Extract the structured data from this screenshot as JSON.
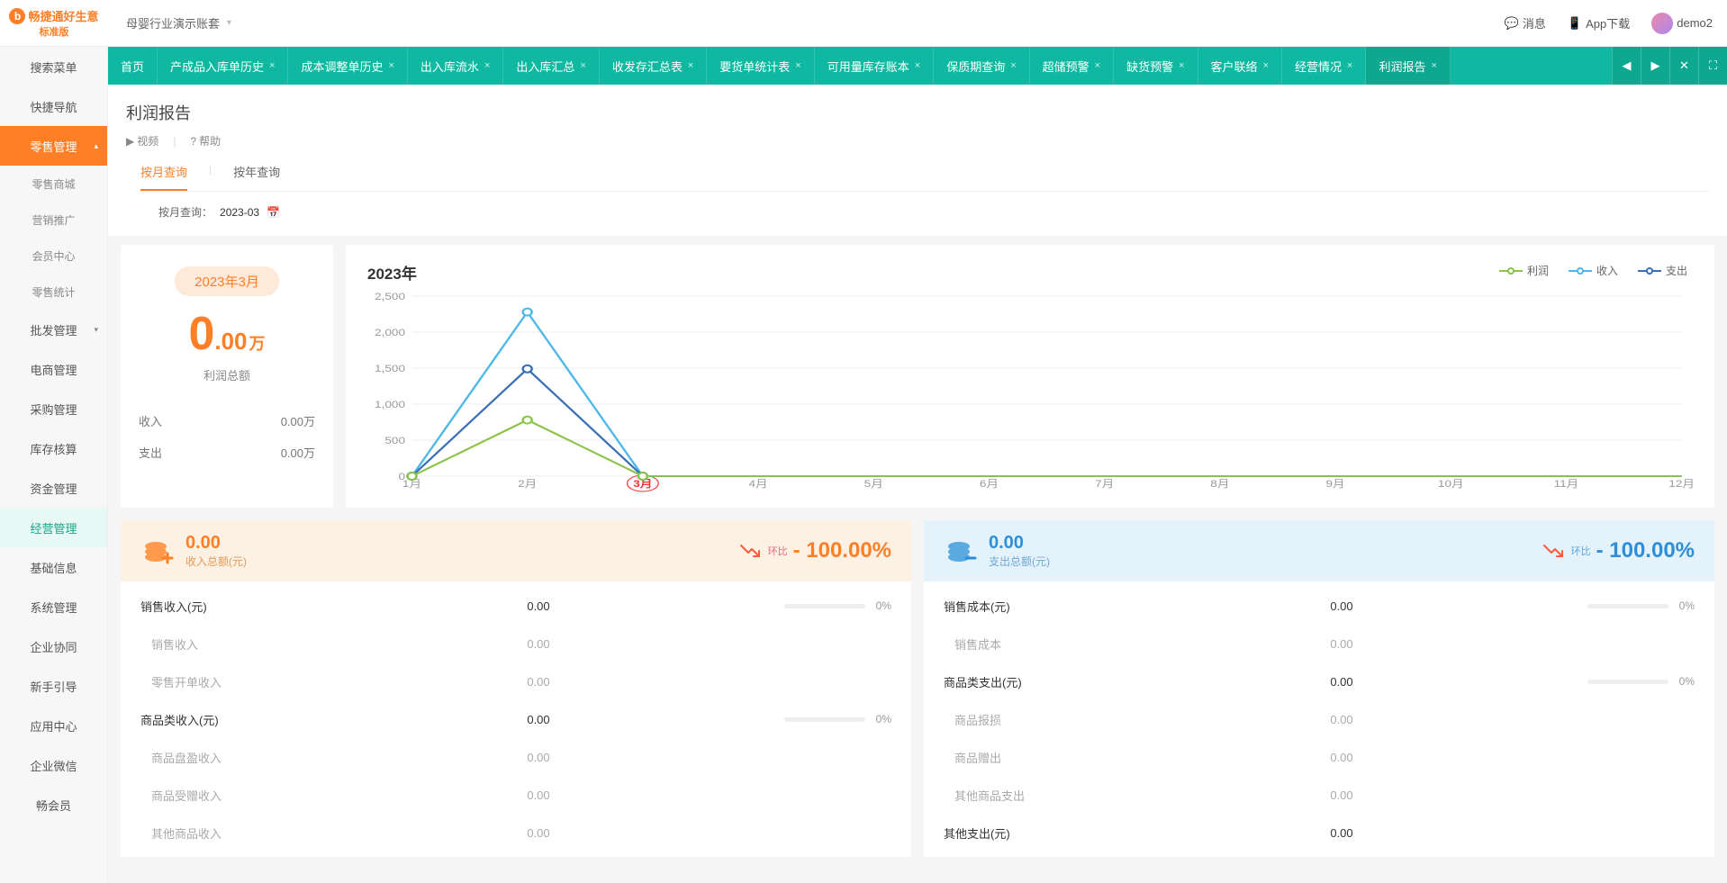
{
  "header": {
    "brand_main": "畅捷通好生意",
    "brand_sub": "标准版",
    "account": "母婴行业演示账套",
    "msg": "消息",
    "app": "App下载",
    "user": "demo2"
  },
  "sidebar": {
    "search": "搜索菜单",
    "quicknav": "快捷导航",
    "retail": "零售管理",
    "retail_sub": [
      "零售商城",
      "营销推广",
      "会员中心",
      "零售统计"
    ],
    "wholesale": "批发管理",
    "ecom": "电商管理",
    "purchase": "采购管理",
    "stock": "库存核算",
    "fund": "资金管理",
    "operate": "经营管理",
    "base": "基础信息",
    "system": "系统管理",
    "coop": "企业协同",
    "guide": "新手引导",
    "appcenter": "应用中心",
    "wechat": "企业微信",
    "member": "畅会员"
  },
  "tabs": {
    "home": "首页",
    "list": [
      "产成品入库单历史",
      "成本调整单历史",
      "出入库流水",
      "出入库汇总",
      "收发存汇总表",
      "要货单统计表",
      "可用量库存账本",
      "保质期查询",
      "超储预警",
      "缺货预警",
      "客户联络",
      "经营情况",
      "利润报告"
    ]
  },
  "page": {
    "title": "利润报告",
    "video": "视频",
    "help": "帮助",
    "subtab_month": "按月查询",
    "subtab_year": "按年查询",
    "filter_label": "按月查询：",
    "filter_value": "2023-03"
  },
  "summary": {
    "period": "2023年3月",
    "big_int": "0",
    "big_dec": ".00",
    "big_unit": "万",
    "profit_label": "利润总额",
    "income_label": "收入",
    "income_val": "0.00万",
    "expense_label": "支出",
    "expense_val": "0.00万"
  },
  "chart": {
    "title": "2023年",
    "legend_profit": "利润",
    "legend_income": "收入",
    "legend_expense": "支出",
    "color_profit": "#8bc34a",
    "color_income": "#4db8e8",
    "color_expense": "#3a6fb7",
    "y_ticks": [
      0,
      500,
      1000,
      1500,
      2000,
      2500
    ],
    "y_max": 2500,
    "x_labels": [
      "1月",
      "2月",
      "3月",
      "4月",
      "5月",
      "6月",
      "7月",
      "8月",
      "9月",
      "10月",
      "11月",
      "12月"
    ],
    "active_x": 2,
    "series": {
      "profit": [
        0,
        780,
        0,
        0,
        0,
        0,
        0,
        0,
        0,
        0,
        0,
        0
      ],
      "income": [
        0,
        2280,
        0,
        0,
        0,
        0,
        0,
        0,
        0,
        0,
        0,
        0
      ],
      "expense": [
        0,
        1490,
        0,
        0,
        0,
        0,
        0,
        0,
        0,
        0,
        0,
        0
      ]
    }
  },
  "income_panel": {
    "value": "0.00",
    "sub": "收入总额(元)",
    "hb": "环比",
    "pct": "- 100.00%",
    "color": "#ff7f27",
    "rows": [
      {
        "label": "销售收入(元)",
        "val": "0.00",
        "pct": "0%",
        "sub": false,
        "bar": true
      },
      {
        "label": "销售收入",
        "val": "0.00",
        "pct": "",
        "sub": true,
        "bar": false
      },
      {
        "label": "零售开单收入",
        "val": "0.00",
        "pct": "",
        "sub": true,
        "bar": false
      },
      {
        "label": "商品类收入(元)",
        "val": "0.00",
        "pct": "0%",
        "sub": false,
        "bar": true
      },
      {
        "label": "商品盘盈收入",
        "val": "0.00",
        "pct": "",
        "sub": true,
        "bar": false
      },
      {
        "label": "商品受赠收入",
        "val": "0.00",
        "pct": "",
        "sub": true,
        "bar": false
      },
      {
        "label": "其他商品收入",
        "val": "0.00",
        "pct": "",
        "sub": true,
        "bar": false
      }
    ]
  },
  "expense_panel": {
    "value": "0.00",
    "sub": "支出总额(元)",
    "hb": "环比",
    "pct": "- 100.00%",
    "color": "#2e8fd8",
    "rows": [
      {
        "label": "销售成本(元)",
        "val": "0.00",
        "pct": "0%",
        "sub": false,
        "bar": true
      },
      {
        "label": "销售成本",
        "val": "0.00",
        "pct": "",
        "sub": true,
        "bar": false
      },
      {
        "label": "商品类支出(元)",
        "val": "0.00",
        "pct": "0%",
        "sub": false,
        "bar": true
      },
      {
        "label": "商品报损",
        "val": "0.00",
        "pct": "",
        "sub": true,
        "bar": false
      },
      {
        "label": "商品赠出",
        "val": "0.00",
        "pct": "",
        "sub": true,
        "bar": false
      },
      {
        "label": "其他商品支出",
        "val": "0.00",
        "pct": "",
        "sub": true,
        "bar": false
      },
      {
        "label": "其他支出(元)",
        "val": "0.00",
        "pct": "",
        "sub": false,
        "bar": false
      }
    ]
  }
}
